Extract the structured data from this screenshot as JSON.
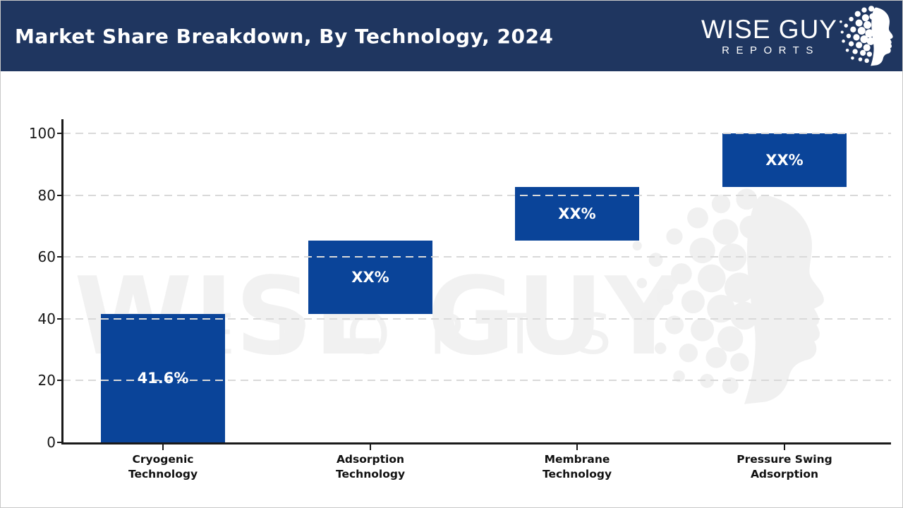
{
  "header": {
    "title": "Market Share Breakdown, By Technology, 2024",
    "logo": {
      "line1": "WISE GUY",
      "line2": "REPORTS"
    }
  },
  "watermark": {
    "line1": "WISE GUY",
    "line2": "REPORTS"
  },
  "colors": {
    "header_bg": "#1f3660",
    "bar": "#0a4499",
    "grid": "#d9d9d9",
    "axis": "#1a1a1a",
    "watermark": "#f1f1f1",
    "bar_label": "#ffffff"
  },
  "chart_data": {
    "type": "bar",
    "subtype": "waterfall",
    "title": "Market Share Breakdown, By Technology, 2024",
    "categories": [
      "Cryogenic Technology",
      "Adsorption Technology",
      "Membrane Technology",
      "Pressure Swing Adsorption"
    ],
    "category_lines": [
      [
        "Cryogenic",
        "Technology"
      ],
      [
        "Adsorption",
        "Technology"
      ],
      [
        "Membrane",
        "Technology"
      ],
      [
        "Pressure Swing",
        "Adsorption"
      ]
    ],
    "segments": [
      {
        "category": "Cryogenic Technology",
        "label": "41.6%",
        "start": 0,
        "end": 41.6
      },
      {
        "category": "Adsorption Technology",
        "label": "XX%",
        "start": 41.6,
        "end": 65.4
      },
      {
        "category": "Membrane Technology",
        "label": "XX%",
        "start": 65.4,
        "end": 82.6
      },
      {
        "category": "Pressure Swing Adsorption",
        "label": "XX%",
        "start": 82.6,
        "end": 100
      }
    ],
    "yticks": [
      0,
      20,
      40,
      60,
      80,
      100
    ],
    "ylim": [
      0,
      105
    ],
    "xlabel": "",
    "ylabel": "",
    "grid": {
      "axis": "y",
      "style": "dashed",
      "on": true
    },
    "legend": "none",
    "value_labels_inside_bars": true,
    "watermark": "WISE GUY REPORTS"
  }
}
